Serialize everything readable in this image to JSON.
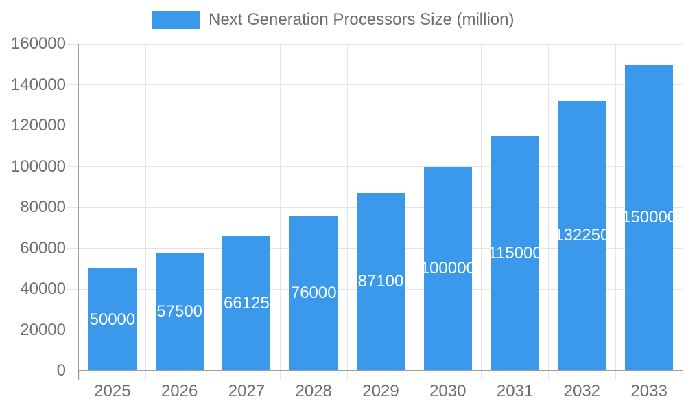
{
  "legend": {
    "label": "Next Generation Processors Size (million)"
  },
  "chart_data": {
    "type": "bar",
    "title": "Next Generation Processors Size (million)",
    "categories": [
      "2025",
      "2026",
      "2027",
      "2028",
      "2029",
      "2030",
      "2031",
      "2032",
      "2033"
    ],
    "series": [
      {
        "name": "Next Generation Processors Size (million)",
        "values": [
          50000,
          57500,
          66125,
          76000,
          87100,
          100000,
          115000,
          132250,
          150000
        ]
      }
    ],
    "value_labels": [
      "50000",
      "57500",
      "66125",
      "76000",
      "87100",
      "100000",
      "115000",
      "132250",
      "150000"
    ],
    "xlabel": "",
    "ylabel": "",
    "ylim": [
      0,
      160000
    ],
    "yticks": [
      0,
      20000,
      40000,
      60000,
      80000,
      100000,
      120000,
      140000,
      160000
    ],
    "ytick_labels": [
      "0",
      "20000",
      "40000",
      "60000",
      "80000",
      "100000",
      "120000",
      "140000",
      "160000"
    ],
    "grid": true,
    "legend_position": "top-center",
    "colors": {
      "bar": "#3B99EC",
      "value_label": "#FFFFFF",
      "axis_text": "#6E6E6E",
      "grid_line": "#E4E4E4",
      "axis_line": "#9E9E9E",
      "background": "#FFFFFF"
    }
  }
}
